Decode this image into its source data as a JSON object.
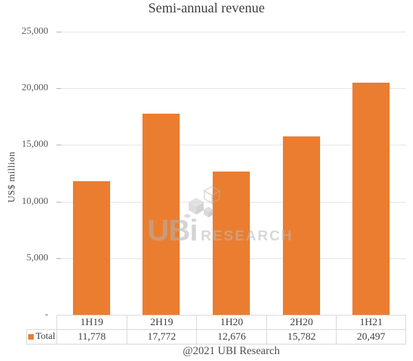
{
  "title": "Semi-annual revenue",
  "y_axis_title": "US$ million",
  "footer_credit": "@2021 UBI Research",
  "watermark": {
    "brand": "UBi",
    "brand_suffix": "RESEARCH"
  },
  "legend": {
    "label": "Total"
  },
  "colors": {
    "bar": "#EB7D31",
    "legend_marker": "#EB7D31",
    "gridline": "#E4E4E4"
  },
  "chart_data": {
    "type": "bar",
    "title": "Semi-annual revenue",
    "xlabel": "",
    "ylabel": "US$ million",
    "categories": [
      "1H19",
      "2H19",
      "1H20",
      "2H20",
      "1H21"
    ],
    "series": [
      {
        "name": "Total",
        "color": "#EB7D31",
        "values": [
          11778,
          17772,
          12676,
          15782,
          20497
        ]
      }
    ],
    "value_labels": [
      "11,778",
      "17,772",
      "12,676",
      "15,782",
      "20,497"
    ],
    "ylim": [
      0,
      25000
    ],
    "y_ticks": [
      {
        "label": "25,000",
        "value": 25000
      },
      {
        "label": "20,000",
        "value": 20000
      },
      {
        "label": "15,000",
        "value": 15000
      },
      {
        "label": "10,000",
        "value": 10000
      },
      {
        "label": "5,000",
        "value": 5000
      },
      {
        "label": "-",
        "value": 0
      }
    ],
    "grid": true,
    "legend_position": "bottom-left-table",
    "annotations": [
      "@2021 UBI Research"
    ]
  }
}
